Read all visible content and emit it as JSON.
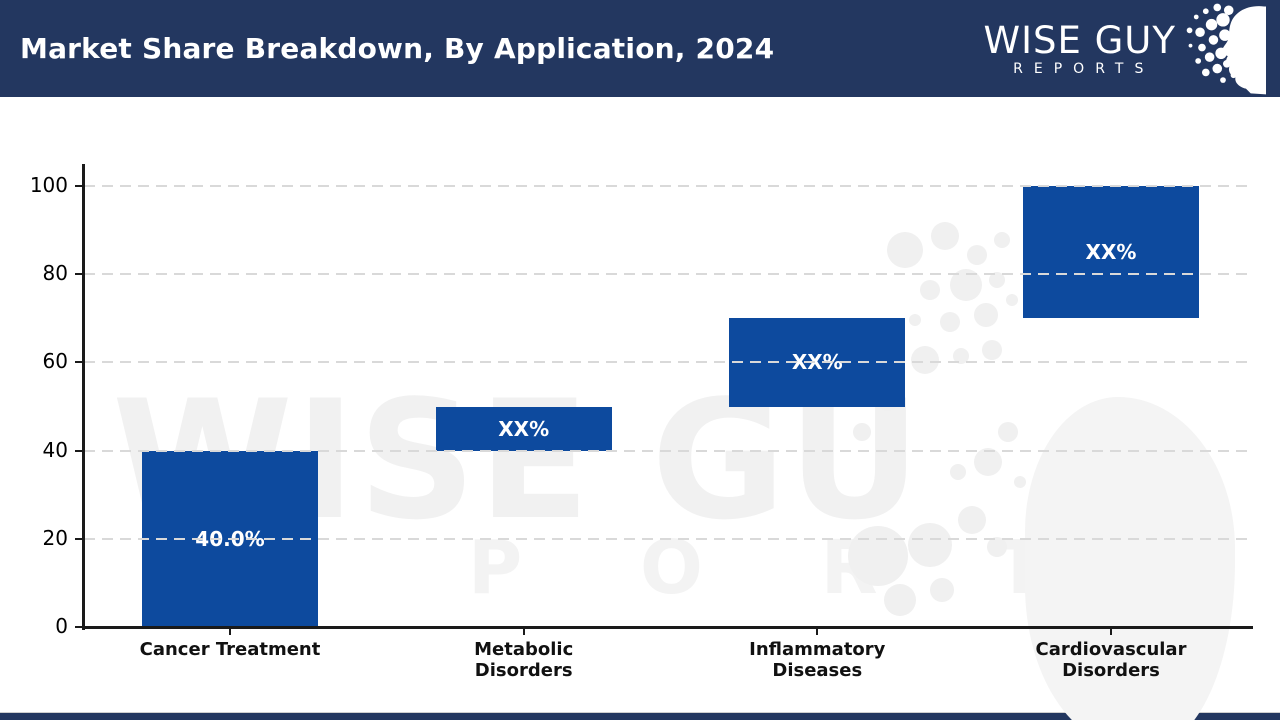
{
  "header": {
    "title": "Market Share Breakdown, By Application, 2024",
    "logo": {
      "name": "WISE GUY",
      "sub": "REPORTS"
    }
  },
  "watermark": {
    "line1": "WISE GU",
    "line2": "P O R T S"
  },
  "chart_data": {
    "type": "bar",
    "variant": "waterfall",
    "title": "Market Share Breakdown, By Application, 2024",
    "categories": [
      [
        "Cancer Treatment"
      ],
      [
        "Metabolic",
        "Disorders"
      ],
      [
        "Inflammatory",
        "Diseases"
      ],
      [
        "Cardiovascular",
        "Disorders"
      ]
    ],
    "bars": [
      {
        "category": "Cancer Treatment",
        "start": 0,
        "end": 40,
        "label": "40.0%"
      },
      {
        "category": "Metabolic Disorders",
        "start": 40,
        "end": 50,
        "label": "XX%"
      },
      {
        "category": "Inflammatory Diseases",
        "start": 50,
        "end": 70,
        "label": "XX%"
      },
      {
        "category": "Cardiovascular Disorders",
        "start": 70,
        "end": 100,
        "label": "XX%"
      }
    ],
    "yticks": [
      0,
      20,
      40,
      60,
      80,
      100
    ],
    "ylim": [
      0,
      105
    ],
    "xlabel": "",
    "ylabel": "",
    "grid": "horizontal-dashed",
    "legend": "none",
    "bar_color": "#0d4a9e",
    "axis_color": "#1a1a1a",
    "grid_color": "#d9d9d9",
    "value_label_color": "#ffffff"
  },
  "colors": {
    "header_bg": "#233760",
    "footer_bg": "#233760",
    "watermark": "#f1f1f1"
  }
}
